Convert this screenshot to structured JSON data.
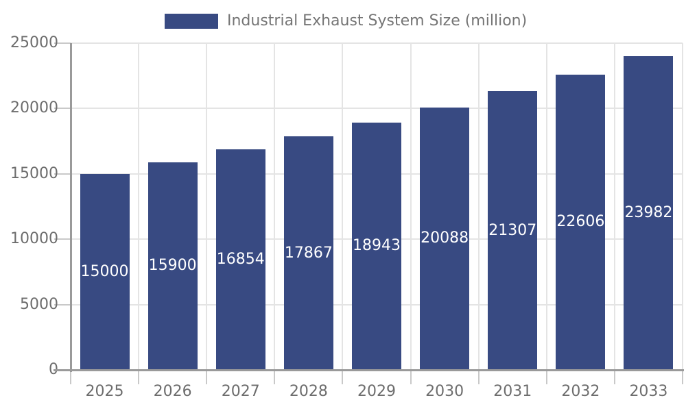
{
  "chart_data": {
    "type": "bar",
    "title": "Industrial Exhaust System Size (million)",
    "categories": [
      "2025",
      "2026",
      "2027",
      "2028",
      "2029",
      "2030",
      "2031",
      "2032",
      "2033"
    ],
    "values": [
      15000,
      15900,
      16854,
      17867,
      18943,
      20088,
      21307,
      22606,
      23982
    ],
    "xlabel": "",
    "ylabel": "",
    "ylim": [
      0,
      25000
    ],
    "yticks": [
      0,
      5000,
      10000,
      15000,
      20000,
      25000
    ],
    "grid": true,
    "legend_position": "top-center",
    "value_label_position": "inside-center",
    "colors": {
      "bar": "#384a82",
      "value_label": "#ffffff",
      "axis_line": "#9a9a9a",
      "tick_line": "#c9c9c9",
      "gridline": "#e4e4e4",
      "tick_label": "#6d6d6d",
      "legend_text": "#757575",
      "background": "#ffffff"
    }
  }
}
